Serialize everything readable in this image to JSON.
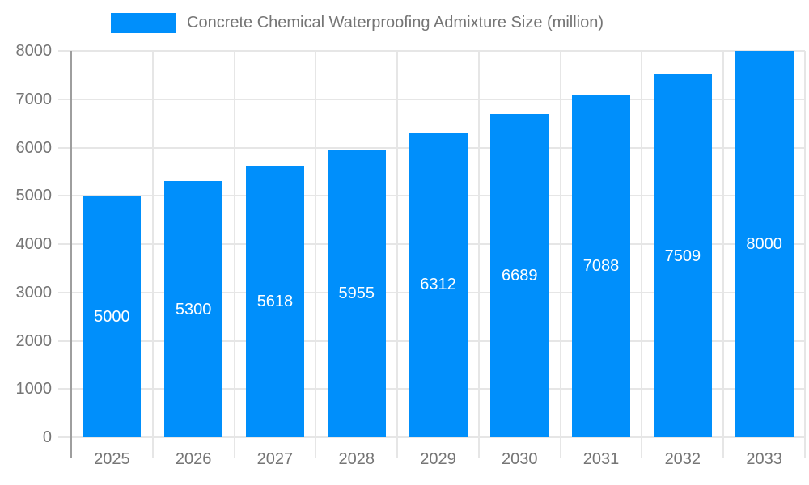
{
  "chart_data": {
    "type": "bar",
    "title": "Concrete Chemical Waterproofing Admixture Size (million)",
    "legend": {
      "label": "Concrete Chemical Waterproofing Admixture Size (million)",
      "position": "top",
      "swatch_color": "#008FFB"
    },
    "categories": [
      "2025",
      "2026",
      "2027",
      "2028",
      "2029",
      "2030",
      "2031",
      "2032",
      "2033"
    ],
    "series": [
      {
        "name": "Concrete Chemical Waterproofing Admixture Size (million)",
        "values": [
          5000,
          5300,
          5618,
          5955,
          6312,
          6689,
          7088,
          7509,
          8000
        ]
      }
    ],
    "xlabel": "",
    "ylabel": "",
    "ylim": [
      0,
      8000
    ],
    "yticks": [
      0,
      1000,
      2000,
      3000,
      4000,
      5000,
      6000,
      7000,
      8000
    ],
    "grid": true,
    "data_labels": {
      "show": true,
      "position": "center",
      "color": "#ffffff"
    }
  },
  "colors": {
    "bar": "#008FFB",
    "title_text": "#757575",
    "axis_text": "#757575",
    "gridline": "#e6e6e6",
    "axis_line": "#9e9e9e",
    "background": "#ffffff",
    "data_label_text": "#ffffff"
  }
}
